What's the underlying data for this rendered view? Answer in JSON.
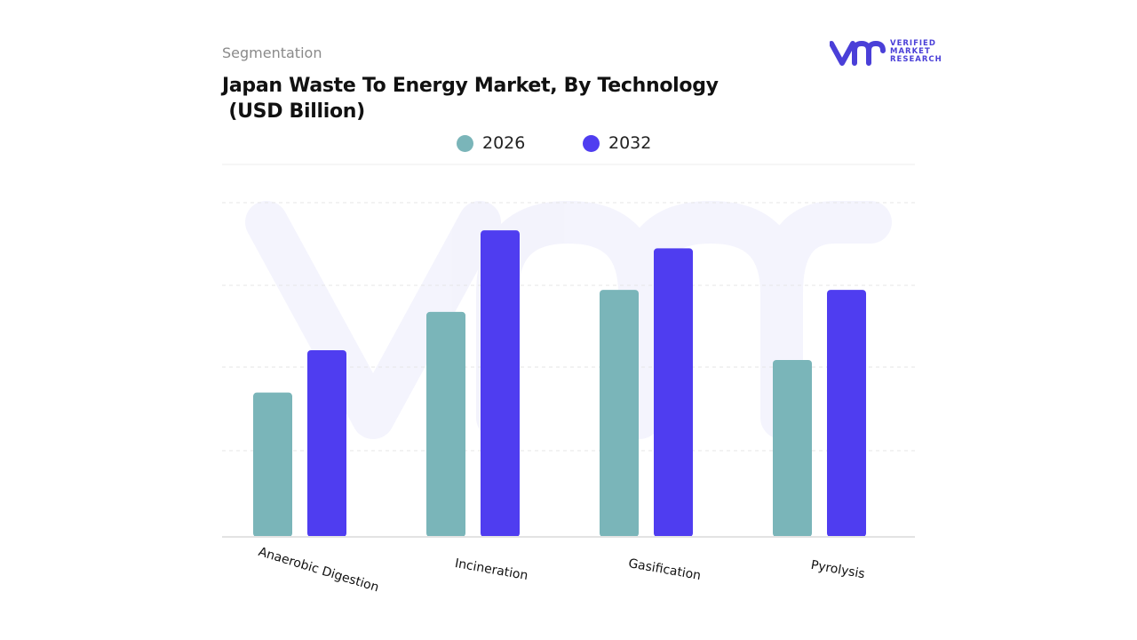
{
  "header": {
    "kicker": "Segmentation",
    "title_line1": "Japan Waste To Energy Market, By Technology",
    "title_line2": " (USD Billion)"
  },
  "logo": {
    "mark": "vmr",
    "line1": "VERIFIED",
    "line2": "MARKET",
    "line3": "RESEARCH",
    "color": "#4a3fd8"
  },
  "legend": [
    {
      "label": "2026",
      "color": "#7ab5b9"
    },
    {
      "label": "2032",
      "color": "#4f3df0"
    }
  ],
  "chart_data": {
    "type": "bar",
    "title": "Japan Waste To Energy Market, By Technology (USD Billion)",
    "categories": [
      "Anaerobic Digestion",
      "Incineration",
      "Gasification",
      "Pyrolysis"
    ],
    "series": [
      {
        "name": "2026",
        "color": "#7ab5b9",
        "values": [
          1.77,
          2.76,
          3.03,
          2.17
        ]
      },
      {
        "name": "2032",
        "color": "#4f3df0",
        "values": [
          2.29,
          3.76,
          3.54,
          3.03
        ]
      }
    ],
    "ylim": [
      0,
      4.1
    ],
    "grid": true,
    "xlabel": "",
    "ylabel": "",
    "legend_position": "top-center"
  }
}
